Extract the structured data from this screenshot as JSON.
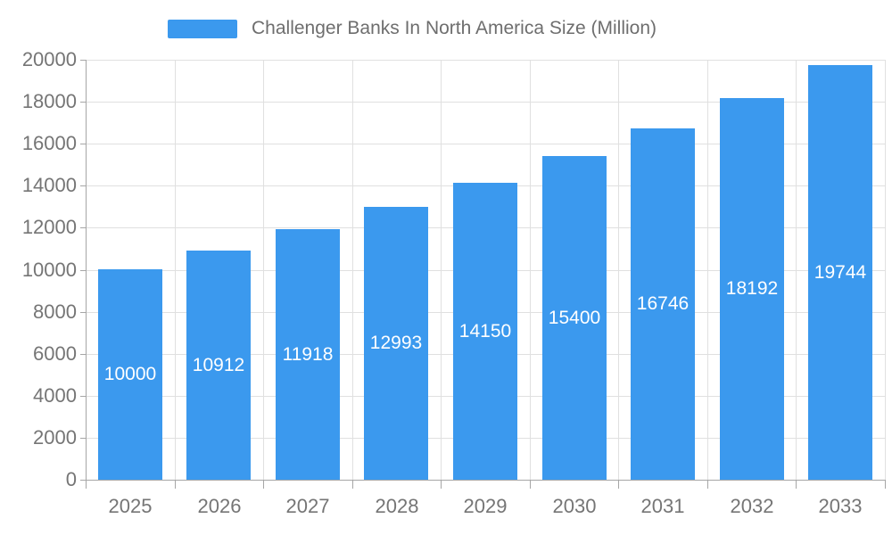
{
  "legend": {
    "label": "Challenger Banks In North America Size (Million)"
  },
  "chart_data": {
    "type": "bar",
    "title": "Challenger Banks In North America Size (Million)",
    "categories": [
      "2025",
      "2026",
      "2027",
      "2028",
      "2029",
      "2030",
      "2031",
      "2032",
      "2033"
    ],
    "values": [
      10000,
      10912,
      11918,
      12993,
      14150,
      15400,
      16746,
      18192,
      19744
    ],
    "xlabel": "",
    "ylabel": "",
    "ylim": [
      0,
      20000
    ],
    "y_ticks": [
      0,
      2000,
      4000,
      6000,
      8000,
      10000,
      12000,
      14000,
      16000,
      18000,
      20000
    ],
    "grid": true,
    "legend_position": "top-center",
    "bar_labels_inside_centered": true,
    "colors": {
      "bar": "#3B99EE",
      "bar_label": "#FFFFFF",
      "axis_text": "#757575",
      "legend_text": "#6E6E6E",
      "grid_line": "#E0E0E0",
      "axis_line": "#A6A6A6",
      "background": "#FFFFFF"
    }
  }
}
